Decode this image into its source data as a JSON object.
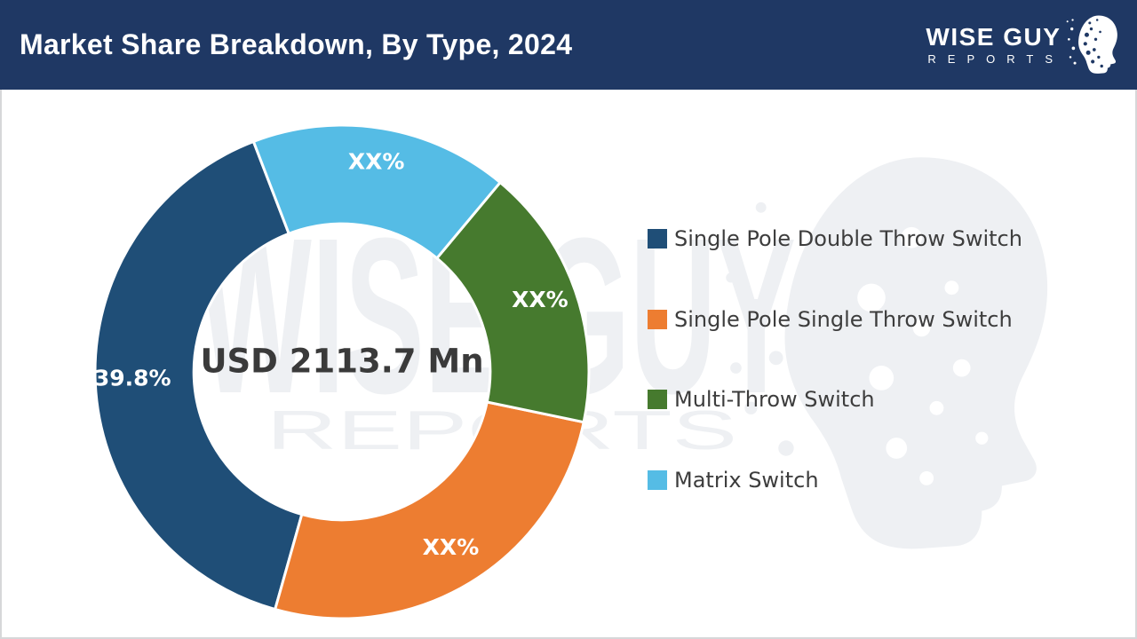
{
  "header": {
    "title": "Market Share Breakdown, By Type, 2024",
    "bg_color": "#1f3864",
    "logo": {
      "line1": "WISE GUY",
      "line2": "REPORTS"
    }
  },
  "watermark": {
    "line1": "WISE GUY",
    "line2": "REPORTS",
    "color": "#eef0f3"
  },
  "chart_data": {
    "type": "pie",
    "subtype": "donut",
    "title": "Market Share Breakdown, By Type, 2024",
    "center_label": "USD 2113.7 Mn",
    "hole_ratio": 0.6,
    "rotation_clock_deg": 339,
    "direction": "counterclockwise",
    "legend_position": "right",
    "segments": [
      {
        "label": "Single Pole Double Throw Switch",
        "value_pct": 39.8,
        "display": "39.8%",
        "color": "#1f4e77"
      },
      {
        "label": "Single Pole Single Throw Switch",
        "value_pct": 26.1,
        "display": "XX%",
        "color": "#ed7d31"
      },
      {
        "label": "Multi-Throw Switch",
        "value_pct": 17.2,
        "display": "XX%",
        "color": "#467a2e"
      },
      {
        "label": "Matrix Switch",
        "value_pct": 16.9,
        "display": "XX%",
        "color": "#55bce5"
      }
    ]
  },
  "colors": {
    "center_text": "#3a3a3a",
    "legend_text": "#3d3d3d",
    "segment_label_text": "#ffffff",
    "frame_border": "#d6d7d9",
    "background": "#ffffff"
  }
}
